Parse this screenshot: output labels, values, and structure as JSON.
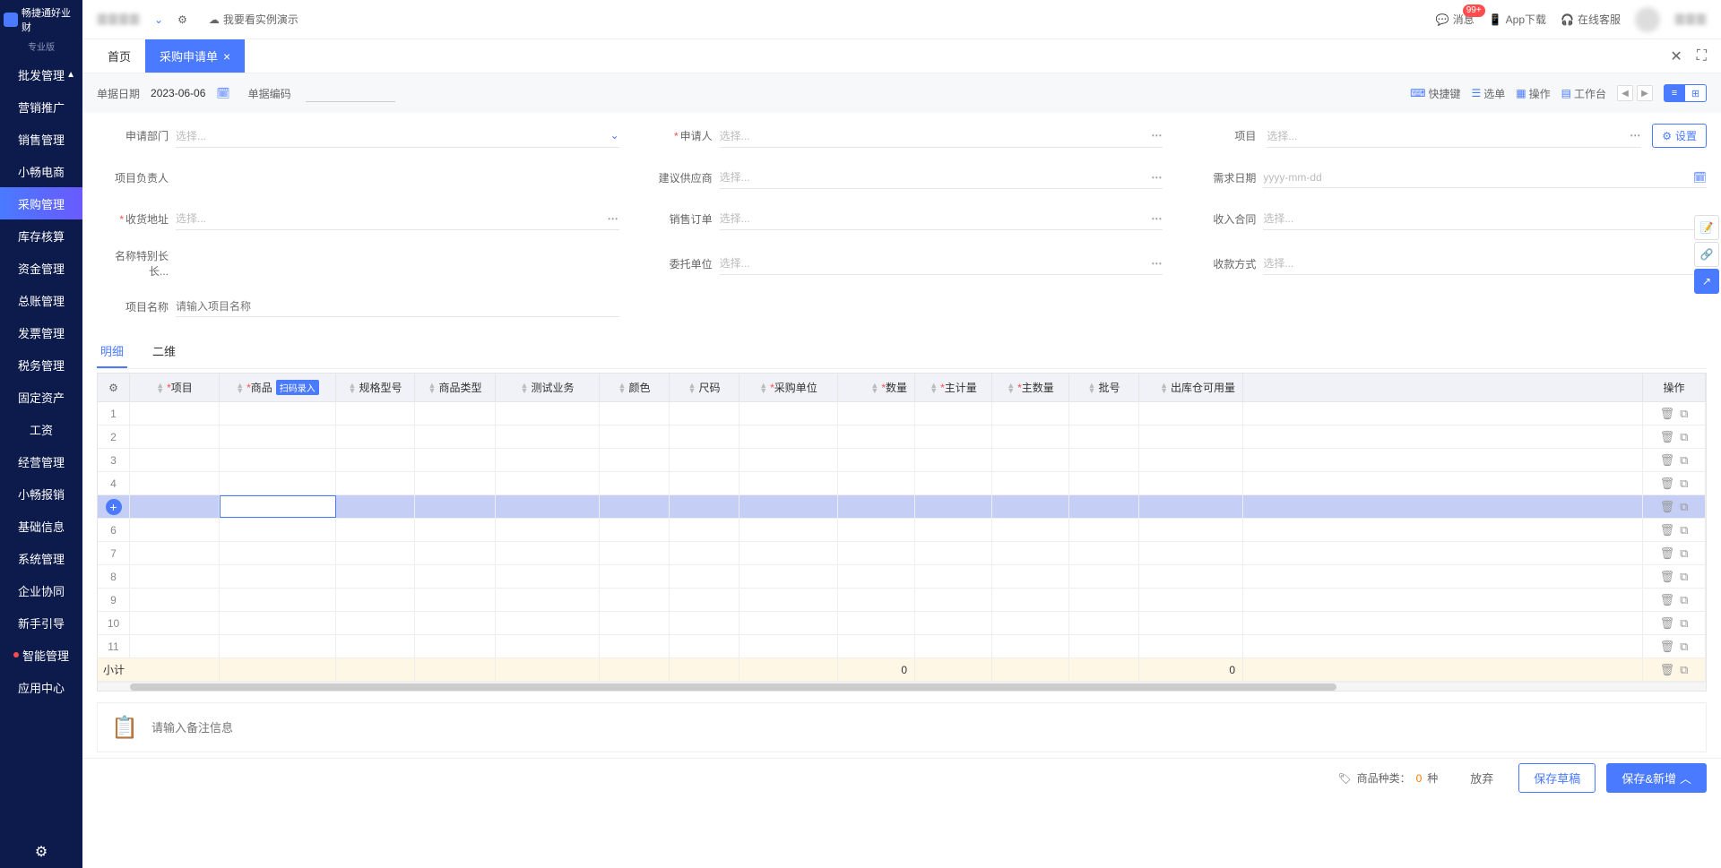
{
  "brand": {
    "name": "畅捷通好业财",
    "edition": "专业版"
  },
  "sidebar": {
    "header": {
      "label": "批发管理",
      "expanded": true
    },
    "items": [
      {
        "label": "营销推广"
      },
      {
        "label": "销售管理"
      },
      {
        "label": "小畅电商"
      },
      {
        "label": "采购管理",
        "active": true
      },
      {
        "label": "库存核算"
      },
      {
        "label": "资金管理"
      },
      {
        "label": "总账管理"
      },
      {
        "label": "发票管理"
      },
      {
        "label": "税务管理"
      },
      {
        "label": "固定资产"
      },
      {
        "label": "工资"
      },
      {
        "label": "经营管理"
      },
      {
        "label": "小畅报销"
      },
      {
        "label": "基础信息"
      },
      {
        "label": "系统管理"
      },
      {
        "label": "企业协同"
      },
      {
        "label": "新手引导"
      },
      {
        "label": "智能管理",
        "dot": true
      },
      {
        "label": "应用中心"
      }
    ]
  },
  "topbar": {
    "company": "〓〓〓〓",
    "demo_label": "我要看实例演示",
    "right": {
      "msg": "消息",
      "msg_badge": "99+",
      "app": "App下载",
      "service": "在线客服",
      "username": "〓〓〓"
    }
  },
  "tabs": [
    {
      "label": "首页",
      "active": false,
      "closable": false
    },
    {
      "label": "采购申请单",
      "active": true,
      "closable": true
    }
  ],
  "form_toolbar": {
    "date_label": "单据日期",
    "date_value": "2023-06-06",
    "code_label": "单据编码",
    "actions": {
      "shortcut": "快捷键",
      "select": "选单",
      "ops": "操作",
      "workbench": "工作台"
    }
  },
  "form": {
    "select_placeholder": "选择...",
    "settings_btn": "设置",
    "rows": [
      [
        {
          "label": "申请部门",
          "type": "dropdown"
        },
        {
          "label": "申请人",
          "required": true,
          "type": "picker"
        },
        {
          "label": "项目",
          "type": "picker",
          "button": true
        }
      ],
      [
        {
          "label": "项目负责人",
          "type": "none"
        },
        {
          "label": "建议供应商",
          "type": "picker"
        },
        {
          "label": "需求日期",
          "type": "date",
          "placeholder": "yyyy-mm-dd"
        }
      ],
      [
        {
          "label": "收货地址",
          "required": true,
          "type": "picker_short"
        },
        {
          "label": "销售订单",
          "type": "picker"
        },
        {
          "label": "收入合同",
          "type": "picker"
        }
      ],
      [
        {
          "label": "名称特别长长...",
          "type": "none"
        },
        {
          "label": "委托单位",
          "type": "picker"
        },
        {
          "label": "收款方式",
          "type": "picker_plain"
        }
      ],
      [
        {
          "label": "项目名称",
          "type": "text",
          "placeholder": "请输入项目名称",
          "span": 1
        }
      ]
    ]
  },
  "detail_tabs": [
    {
      "label": "明细",
      "active": true
    },
    {
      "label": "二维"
    }
  ],
  "table": {
    "scan_badge": "扫码录入",
    "columns": [
      {
        "key": "idx",
        "label": "",
        "cls": "col-idx",
        "gear": true
      },
      {
        "key": "proj",
        "label": "项目",
        "cls": "col-proj",
        "sort": true,
        "req": true
      },
      {
        "key": "prod",
        "label": "商品",
        "cls": "col-prod",
        "sort": true,
        "req": true,
        "scan": true
      },
      {
        "key": "spec",
        "label": "规格型号",
        "cls": "col-spec",
        "sort": true
      },
      {
        "key": "type",
        "label": "商品类型",
        "cls": "col-type",
        "sort": true
      },
      {
        "key": "test",
        "label": "测试业务",
        "cls": "col-test",
        "sort": true
      },
      {
        "key": "color",
        "label": "颜色",
        "cls": "col-color",
        "sort": true
      },
      {
        "key": "size",
        "label": "尺码",
        "cls": "col-size",
        "sort": true
      },
      {
        "key": "unit",
        "label": "采购单位",
        "cls": "col-unit",
        "sort": true,
        "req": true
      },
      {
        "key": "qty",
        "label": "数量",
        "cls": "col-qty",
        "sort": true,
        "req": true
      },
      {
        "key": "munit",
        "label": "主计量",
        "cls": "col-munit",
        "sort": true,
        "req": true
      },
      {
        "key": "mqty",
        "label": "主数量",
        "cls": "col-mqty",
        "sort": true,
        "req": true
      },
      {
        "key": "batch",
        "label": "批号",
        "cls": "col-batch",
        "sort": true
      },
      {
        "key": "avail",
        "label": "出库仓可用量",
        "cls": "col-avail",
        "sort": true
      },
      {
        "key": "flex",
        "label": "",
        "cls": "col-flex"
      },
      {
        "key": "ops",
        "label": "操作",
        "cls": "col-ops"
      }
    ],
    "row_count": 11,
    "active_row": 5,
    "subtotal": {
      "label": "小计",
      "qty": "0",
      "avail": "0"
    }
  },
  "remarks": {
    "placeholder": "请输入备注信息"
  },
  "footer": {
    "kinds_label": "商品种类：",
    "kinds_value": "0",
    "kinds_unit": "种",
    "discard": "放弃",
    "draft": "保存草稿",
    "save": "保存&新增"
  },
  "colors": {
    "primary": "#4a7aff",
    "sidebar_bg": "#0d1b4c",
    "danger": "#ff4d4f",
    "orange": "#ff7a00",
    "subtotal_bg": "#fff7e6",
    "active_row": "#c5cef5"
  }
}
